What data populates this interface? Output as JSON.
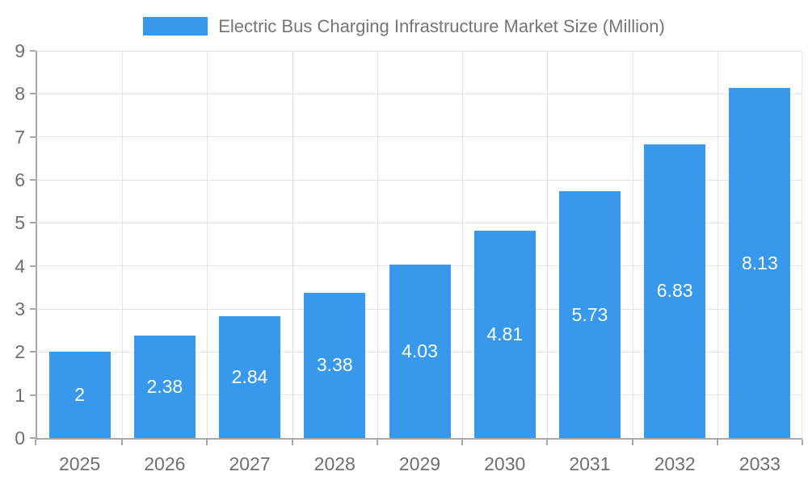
{
  "legend": {
    "label": "Electric Bus Charging Infrastructure Market Size (Million)"
  },
  "chart_data": {
    "type": "bar",
    "title": "Electric Bus Charging Infrastructure Market Size (Million)",
    "categories": [
      "2025",
      "2026",
      "2027",
      "2028",
      "2029",
      "2030",
      "2031",
      "2032",
      "2033"
    ],
    "values": [
      2,
      2.38,
      2.84,
      3.38,
      4.03,
      4.81,
      5.73,
      6.83,
      8.13
    ],
    "value_labels": [
      "2",
      "2.38",
      "2.84",
      "3.38",
      "4.03",
      "4.81",
      "5.73",
      "6.83",
      "8.13"
    ],
    "xlabel": "",
    "ylabel": "",
    "ylim": [
      0,
      9
    ],
    "y_ticks": [
      0,
      1,
      2,
      3,
      4,
      5,
      6,
      7,
      8,
      9
    ],
    "grid": true,
    "legend_position": "top",
    "colors": {
      "bar": "#3899EC",
      "value_label": "#FFFFFF",
      "axis_line": "#A8A8A8",
      "gridline": "#E5E5E5",
      "tick_label": "#6F6F6F",
      "legend_text": "#757575",
      "background": "#FFFFFF"
    }
  }
}
